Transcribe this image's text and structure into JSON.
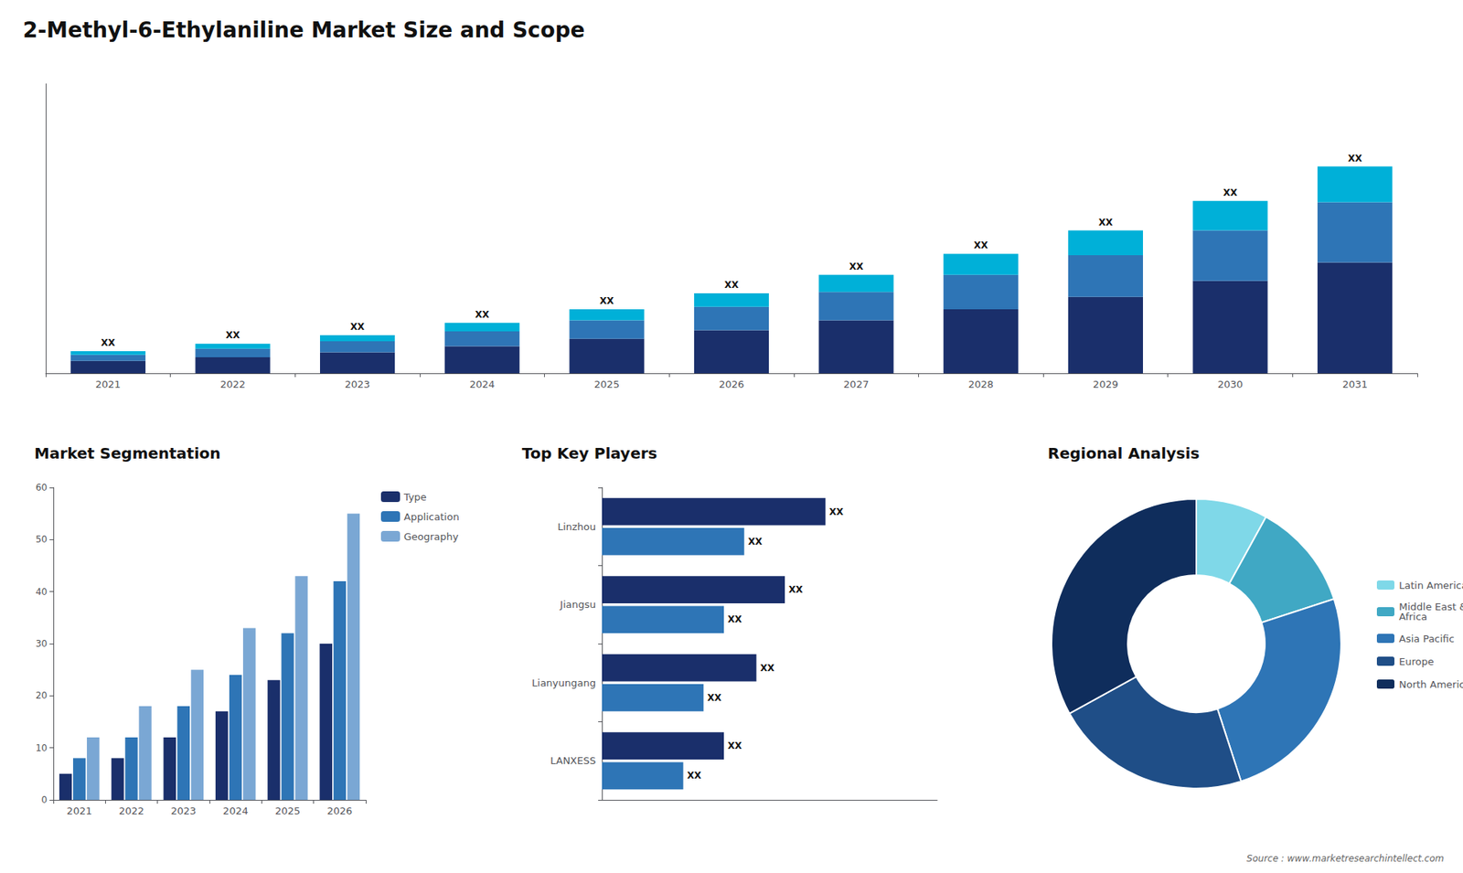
{
  "title": "2-Methyl-6-Ethylaniline Market Size and Scope",
  "annotations": [
    "Source : www.marketresearchintellect.com"
  ],
  "chart_data": [
    {
      "type": "bar",
      "stacked": true,
      "categories": [
        "2021",
        "2022",
        "2023",
        "2024",
        "2025",
        "2026",
        "2027",
        "2028",
        "2029",
        "2030",
        "2031"
      ],
      "series": [
        {
          "color": "#1a2f6b",
          "values": [
            1,
            1.3,
            1.7,
            2.2,
            2.8,
            3.5,
            4.3,
            5.2,
            6.2,
            7.5,
            9.0
          ]
        },
        {
          "color": "#2e75b6",
          "values": [
            0.5,
            0.7,
            0.9,
            1.2,
            1.5,
            1.9,
            2.3,
            2.8,
            3.4,
            4.1,
            4.9
          ]
        },
        {
          "color": "#00b0d8",
          "values": [
            0.3,
            0.4,
            0.5,
            0.7,
            0.9,
            1.1,
            1.4,
            1.7,
            2.0,
            2.4,
            2.9
          ],
          "value_labels": [
            "XX",
            "XX",
            "XX",
            "XX",
            "XX",
            "XX",
            "XX",
            "XX",
            "XX",
            "XX",
            "XX"
          ]
        }
      ],
      "ylim": [
        0,
        23.52
      ],
      "tick_labels": "x",
      "grid": false
    },
    {
      "type": "bar",
      "title": "Market Segmentation",
      "categories": [
        "2021",
        "2022",
        "2023",
        "2024",
        "2025",
        "2026"
      ],
      "series": [
        {
          "name": "Type",
          "color": "#1a2f6b",
          "values": [
            5,
            8,
            12,
            17,
            23,
            30
          ]
        },
        {
          "name": "Application",
          "color": "#2e75b6",
          "values": [
            8,
            12,
            18,
            24,
            32,
            42
          ]
        },
        {
          "name": "Geography",
          "color": "#7aa7d4",
          "values": [
            12,
            18,
            25,
            33,
            43,
            55
          ]
        }
      ],
      "ylim": [
        0,
        60
      ],
      "yticks": [
        0,
        10,
        20,
        30,
        40,
        50,
        60
      ],
      "grid": false,
      "legend": "right"
    },
    {
      "type": "bar",
      "orientation": "horizontal",
      "title": "Top Key Players",
      "categories": [
        "LANXESS",
        "Lianyungang",
        "Jiangsu",
        "Linzhou"
      ],
      "series": [
        {
          "color": "#1a2f6b",
          "values": [
            3,
            3.8,
            4.5,
            5.5
          ],
          "value_labels": [
            "XX",
            "XX",
            "XX",
            "XX"
          ]
        },
        {
          "color": "#2e75b6",
          "values": [
            2,
            2.5,
            3.0,
            3.5
          ],
          "value_labels": [
            "XX",
            "XX",
            "XX",
            "XX"
          ]
        }
      ],
      "xlim": [
        0,
        8.25
      ],
      "tick_labels": "y",
      "grid": false
    },
    {
      "type": "pie",
      "title": "Regional Analysis",
      "categories": [
        "Latin America",
        "Middle East &\nAfrica",
        "Asia Pacific",
        "Europe",
        "North America"
      ],
      "values": [
        8,
        12,
        25,
        22,
        33
      ],
      "colors": [
        "#7fd8e8",
        "#40a8c4",
        "#2e75b6",
        "#1f4e87",
        "#0f2d5c"
      ],
      "legend": "right"
    }
  ]
}
